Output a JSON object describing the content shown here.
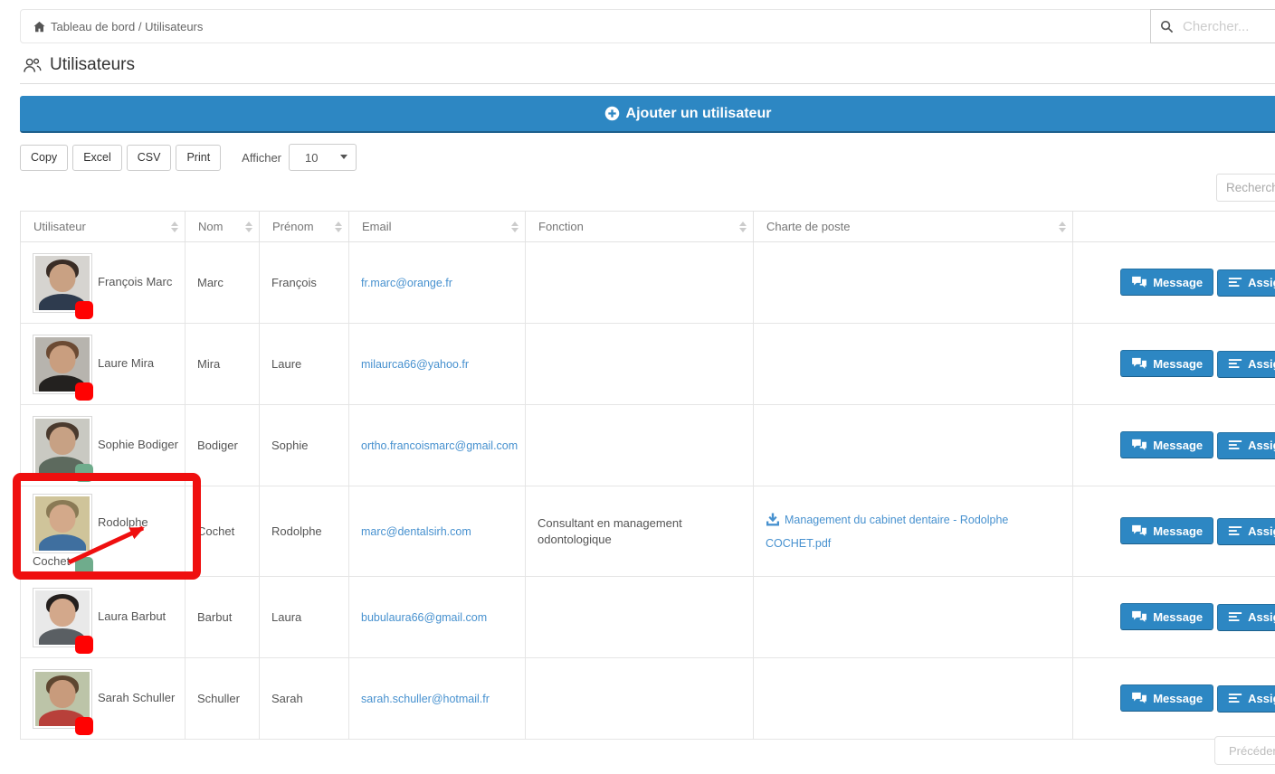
{
  "topbar": {
    "breadcrumb": "Tableau de bord / Utilisateurs",
    "search_placeholder": "Chercher..."
  },
  "page": {
    "title": "Utilisateurs"
  },
  "add_user": {
    "label": "Ajouter un utilisateur"
  },
  "toolbar": {
    "export_buttons": [
      "Copy",
      "Excel",
      "CSV",
      "Print"
    ],
    "length_label": "Afficher",
    "length_value": "10"
  },
  "table_search": {
    "placeholder": "Rechercher"
  },
  "table": {
    "columns": [
      {
        "label": "Utilisateur",
        "sortable": true
      },
      {
        "label": "Nom",
        "sortable": true
      },
      {
        "label": "Prénom",
        "sortable": true
      },
      {
        "label": "Email",
        "sortable": true
      },
      {
        "label": "Fonction",
        "sortable": true
      },
      {
        "label": "Charte de poste",
        "sortable": true
      },
      {
        "label": "",
        "sortable": false
      }
    ],
    "row_actions": {
      "message": "Message",
      "assigner": "Assigner"
    },
    "rows": [
      {
        "display_name": "François Marc",
        "nom": "Marc",
        "prenom": "François",
        "email": "fr.marc@orange.fr",
        "fonction": "",
        "charte": "",
        "status": "red",
        "avatar": {
          "bg": "#d6d4d0",
          "hair": "#3a2d26",
          "skin": "#c9a183",
          "shirt": "#2e3b4e"
        }
      },
      {
        "display_name": "Laure Mira",
        "nom": "Mira",
        "prenom": "Laure",
        "email": "milaurca66@yahoo.fr",
        "fonction": "",
        "charte": "",
        "status": "red",
        "avatar": {
          "bg": "#b7b4ae",
          "hair": "#6b4a33",
          "skin": "#c99e7f",
          "shirt": "#23211f"
        }
      },
      {
        "display_name": "Sophie Bodiger",
        "nom": "Bodiger",
        "prenom": "Sophie",
        "email": "ortho.francoismarc@gmail.com",
        "fonction": "",
        "charte": "",
        "status": "green",
        "avatar": {
          "bg": "#c9c9c2",
          "hair": "#4a3a2e",
          "skin": "#c7a184",
          "shirt": "#5d6a5e"
        }
      },
      {
        "display_name": "Rodolphe Cochet",
        "nom": "Cochet",
        "prenom": "Rodolphe",
        "email": "marc@dentalsirh.com",
        "fonction": "Consultant en management odontologique",
        "charte": "Management du cabinet dentaire - Rodolphe COCHET.pdf",
        "status": "green",
        "avatar": {
          "bg": "#cfc49a",
          "hair": "#8a7a55",
          "skin": "#d3a98a",
          "shirt": "#3f6f9f"
        }
      },
      {
        "display_name": "Laura Barbut",
        "nom": "Barbut",
        "prenom": "Laura",
        "email": "bubulaura66@gmail.com",
        "fonction": "",
        "charte": "",
        "status": "red",
        "avatar": {
          "bg": "#e9e9e9",
          "hair": "#241f1d",
          "skin": "#d3a88b",
          "shirt": "#5a5f63"
        }
      },
      {
        "display_name": "Sarah Schuller",
        "nom": "Schuller",
        "prenom": "Sarah",
        "email": "sarah.schuller@hotmail.fr",
        "fonction": "",
        "charte": "",
        "status": "red",
        "avatar": {
          "bg": "#bcc4a8",
          "hair": "#5d4630",
          "skin": "#c89b7c",
          "shirt": "#b8403a"
        }
      }
    ]
  },
  "pagination": {
    "previous": "Précédent"
  },
  "annotation": {
    "color": "#ef0f0f"
  },
  "colors": {
    "accent_blue": "#2d87c3",
    "link_blue": "#4791cf",
    "status_red": "#ff0202",
    "status_green": "#6fac8c"
  }
}
